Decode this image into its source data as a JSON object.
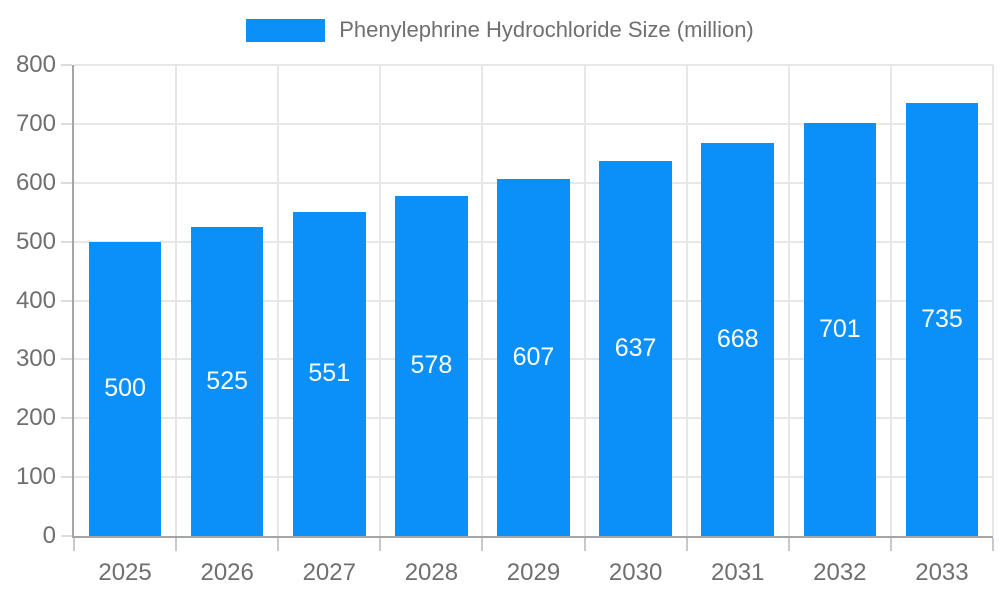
{
  "chart_data": {
    "type": "bar",
    "title": "",
    "legend": "Phenylephrine Hydrochloride Size (million)",
    "legend_position": "top-center",
    "categories": [
      "2025",
      "2026",
      "2027",
      "2028",
      "2029",
      "2030",
      "2031",
      "2032",
      "2033"
    ],
    "values": [
      500,
      525,
      551,
      578,
      607,
      637,
      668,
      701,
      735
    ],
    "xlabel": "",
    "ylabel": "",
    "ylim": [
      0,
      800
    ],
    "yticks": [
      0,
      100,
      200,
      300,
      400,
      500,
      600,
      700,
      800
    ],
    "grid": true,
    "bar_color": "#0a90f8",
    "bar_value_label_color": "#ffffff",
    "axis_text_color": "#6f6f6f",
    "gridline_color": "#e7e7e7",
    "axis_line_color": "#a5a5a5"
  }
}
